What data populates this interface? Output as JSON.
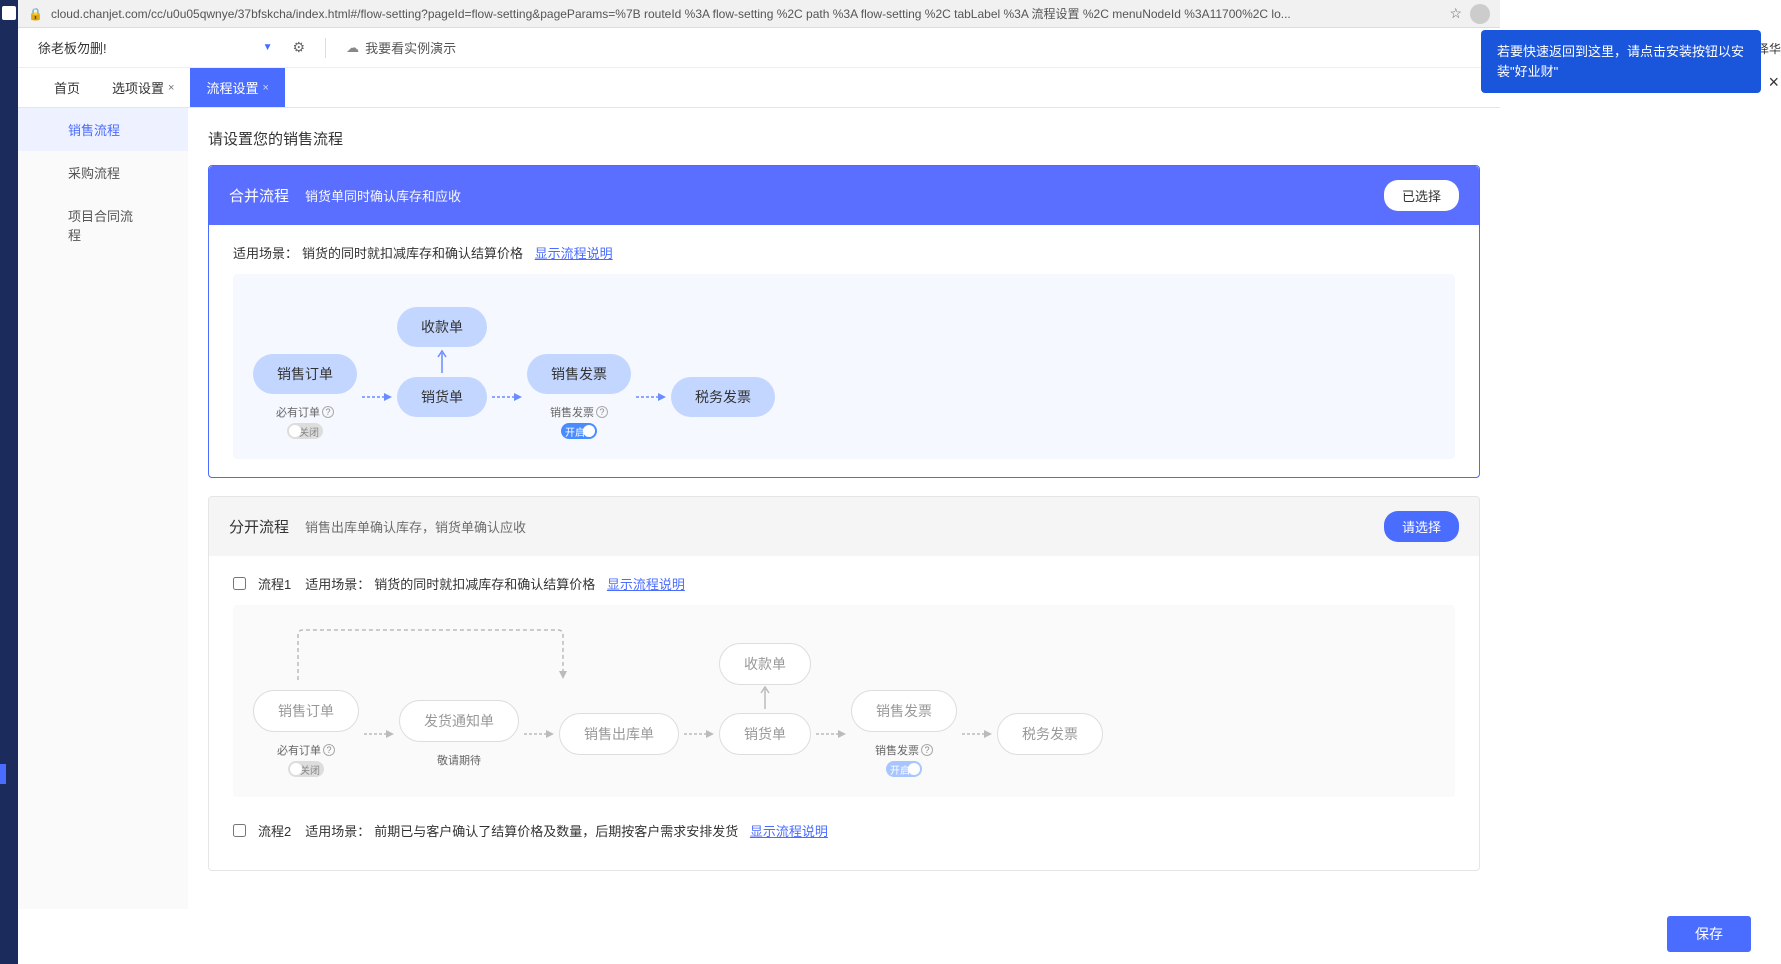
{
  "url": "cloud.chanjet.com/cc/u0u05qwnye/37bfskcha/index.html#/flow-setting?pageId=flow-setting&pageParams=%7B routeId %3A flow-setting %2C path %3A flow-setting %2C tabLabel %3A 流程设置 %2C menuNodeId %3A11700%2C lo...",
  "tooltip": "若要快速返回到这里，请点击安装按钮以安装\"好业财\"",
  "cornerText": "泽华",
  "org": "徐老板勿删!",
  "demoLink": "我要看实例演示",
  "tabs": [
    {
      "label": "首页",
      "closable": false,
      "active": false
    },
    {
      "label": "选项设置",
      "closable": true,
      "active": false
    },
    {
      "label": "流程设置",
      "closable": true,
      "active": true
    }
  ],
  "sidebar": [
    {
      "label": "销售流程",
      "active": true
    },
    {
      "label": "采购流程",
      "active": false
    },
    {
      "label": "项目合同流程",
      "active": false
    }
  ],
  "pageTitle": "请设置您的销售流程",
  "linkText": "显示流程说明",
  "merged": {
    "title": "合并流程",
    "subtitle": "销货单同时确认库存和应收",
    "btn": "已选择",
    "scenarioLabel": "适用场景：",
    "scenario": "销货的同时就扣减库存和确认结算价格",
    "bgColor": "#f5f8ff",
    "nodeColor": "#c3d6ff",
    "topNode": "收款单",
    "nodes": [
      "销售订单",
      "销货单",
      "销售发票",
      "税务发票"
    ],
    "opt1": {
      "label": "必有订单",
      "state": "关闭",
      "on": false
    },
    "opt2": {
      "label": "销售发票",
      "state": "开启",
      "on": true
    }
  },
  "split": {
    "title": "分开流程",
    "subtitle": "销售出库单确认库存，销货单确认应收",
    "btn": "请选择",
    "flow1": {
      "name": "流程1",
      "scenarioLabel": "适用场景：",
      "scenario": "销货的同时就扣减库存和确认结算价格",
      "topNode": "收款单",
      "nodes": [
        "销售订单",
        "发货通知单",
        "销售出库单",
        "销货单",
        "销售发票",
        "税务发票"
      ],
      "opt1": {
        "label": "必有订单",
        "state": "关闭",
        "on": false
      },
      "opt2": {
        "label": "敬请期待"
      },
      "opt3": {
        "label": "销售发票",
        "state": "开启",
        "on": true
      }
    },
    "flow2": {
      "name": "流程2",
      "scenarioLabel": "适用场景：",
      "scenario": "前期已与客户确认了结算价格及数量，后期按客户需求安排发货"
    }
  },
  "saveBtn": "保存"
}
